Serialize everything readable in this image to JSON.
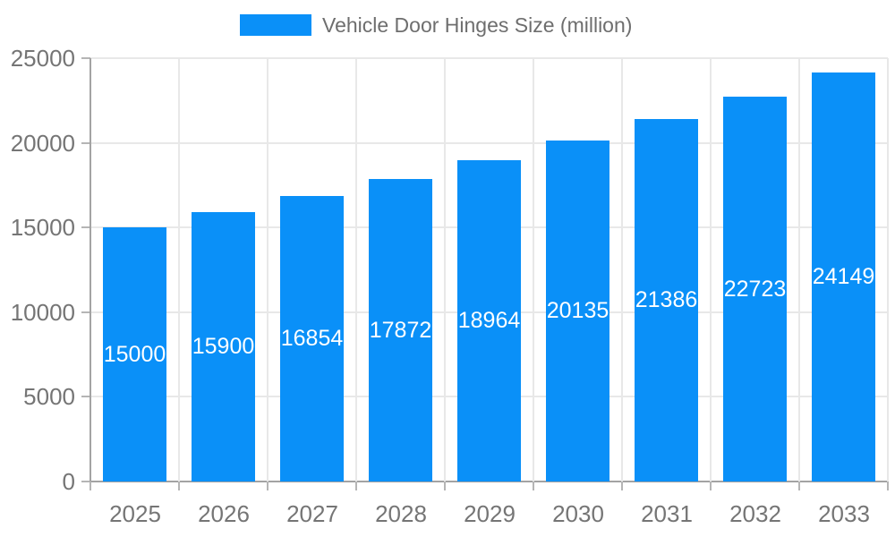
{
  "chart_data": {
    "type": "bar",
    "title": "Vehicle Door Hinges Size (million)",
    "legend_position": "top",
    "categories": [
      "2025",
      "2026",
      "2027",
      "2028",
      "2029",
      "2030",
      "2031",
      "2032",
      "2033"
    ],
    "values": [
      15000,
      15900,
      16854,
      17872,
      18964,
      20135,
      21386,
      22723,
      24149
    ],
    "xlabel": "",
    "ylabel": "",
    "ylim": [
      0,
      25000
    ],
    "yticks": [
      0,
      5000,
      10000,
      15000,
      20000,
      25000
    ],
    "grid": true,
    "bar_labels_inside": true,
    "colors": {
      "bar": "#0a90f8",
      "bar_label": "#ffffff",
      "axis_label": "#757575",
      "legend_text": "#6e6e6e",
      "gridline": "#e8e8e8",
      "axis_line": "#a3a3a3",
      "tick": "#b5b5b5",
      "background": "#ffffff"
    }
  }
}
